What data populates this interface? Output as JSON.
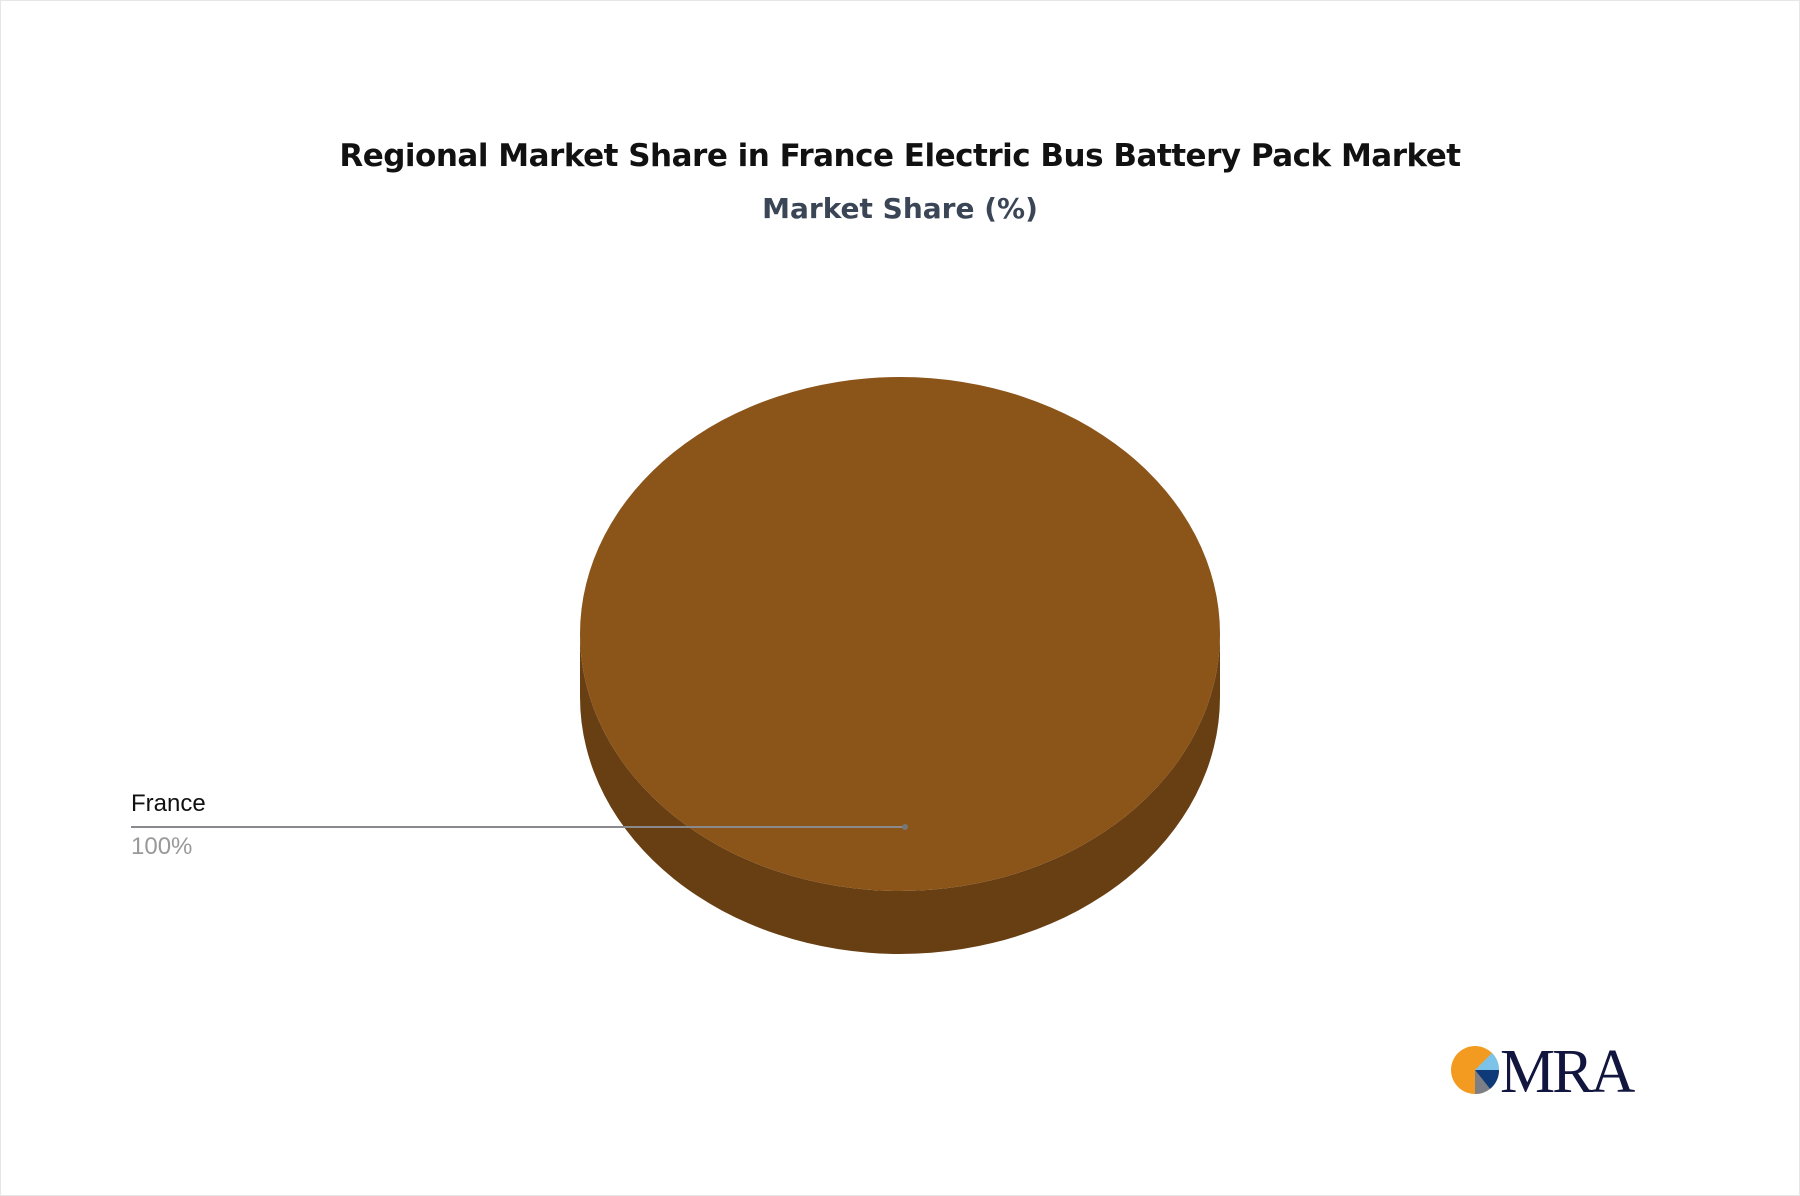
{
  "chart_data": {
    "type": "pie",
    "style": "3d",
    "title": "Regional Market Share in France Electric Bus Battery Pack Market",
    "subtitle": "Market Share (%)",
    "slices": [
      {
        "label": "France",
        "value": 100,
        "value_label": "100%",
        "color": "#8B5419",
        "side_color": "#683F13"
      }
    ],
    "legend": "none"
  },
  "logo": {
    "text": "MRA",
    "colors": [
      "#F39A21",
      "#7CC3EA",
      "#0E3A7A",
      "#7D7F86",
      "#12163F"
    ]
  }
}
